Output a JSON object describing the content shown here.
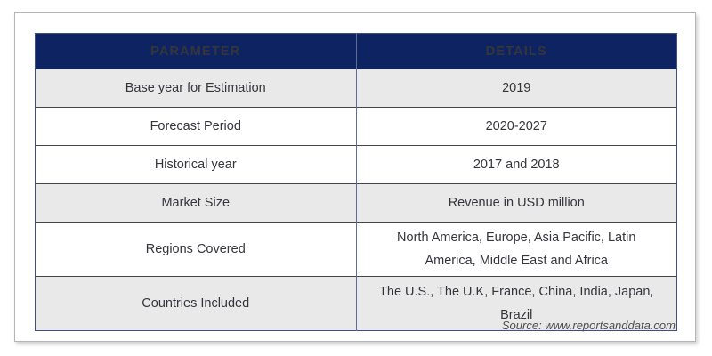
{
  "table": {
    "headers": [
      "PARAMETER",
      "DETAILS"
    ],
    "rows": [
      {
        "parameter": "Base year for Estimation",
        "details": "2019",
        "shaded": true
      },
      {
        "parameter": "Forecast Period",
        "details": "2020-2027",
        "shaded": false
      },
      {
        "parameter": "Historical year",
        "details": "2017 and 2018",
        "shaded": false
      },
      {
        "parameter": "Market Size",
        "details": "Revenue in USD million",
        "shaded": true
      },
      {
        "parameter": "Regions Covered",
        "details": "North America, Europe, Asia Pacific, Latin America, Middle East and Africa",
        "shaded": false
      },
      {
        "parameter": "Countries Included",
        "details": "The U.S., The  U.K, France, China, India, Japan, Brazil",
        "shaded": true
      }
    ]
  },
  "footer": {
    "source": "Source: www.reportsanddata.com"
  },
  "colors": {
    "header_bg": "#0e2361",
    "header_text": "#ffffff",
    "shaded_row": "#e9e9e9",
    "table_border": "#3f4f82",
    "cell_text": "#35353c",
    "source_text": "#4f4f4f"
  }
}
